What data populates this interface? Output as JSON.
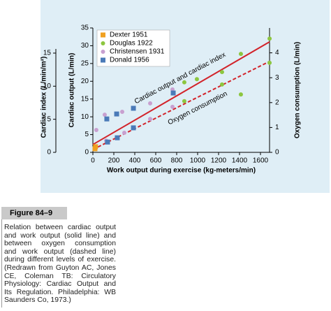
{
  "chart_data": {
    "type": "scatter",
    "x_label": "Work output during exercise (kg-meters/min)",
    "y_label": "Cardiac output (L/min)",
    "y2_label": "Oxygen consumption (L/min)",
    "xlim": [
      0,
      1700
    ],
    "xticks": [
      0,
      200,
      400,
      600,
      800,
      1000,
      1200,
      1400,
      1600
    ],
    "ylim": [
      0,
      35
    ],
    "yticks": [
      0,
      5,
      10,
      15,
      20,
      25,
      30,
      35
    ],
    "y2lim": [
      0,
      5
    ],
    "y2ticks": [
      0,
      1,
      2,
      3,
      4
    ],
    "index_axis": {
      "label": "Cardiac index (L/min/m²)",
      "lim": [
        0,
        18.8
      ],
      "ticks": [
        0,
        5,
        10,
        15
      ]
    },
    "series": [
      {
        "name": "Dexter 1951",
        "color": "#f0a020",
        "marker": "square",
        "x": [
          20,
          25
        ],
        "values": [
          1.0,
          1.6
        ]
      },
      {
        "name": "Douglas 1922",
        "color": "#8cc63f",
        "marker": "circle",
        "x": [
          1687,
          1413,
          1233,
          1233,
          1413,
          993,
          873,
          873,
          1687
        ],
        "values": [
          32,
          27.7,
          22.6,
          19.1,
          16.3,
          20.6,
          19.7,
          14.4,
          25.2
        ]
      },
      {
        "name": "Christensen 1931",
        "color": "#c8a0d0",
        "marker": "circle",
        "x": [
          33,
          113,
          280,
          300,
          547,
          547,
          760,
          760,
          127
        ],
        "values": [
          6.3,
          10.6,
          11.4,
          5.5,
          13.8,
          9.4,
          17.7,
          12.8,
          3.3
        ]
      },
      {
        "name": "Donald 1956",
        "color": "#4a7ab8",
        "marker": "square",
        "x": [
          133,
          227,
          387,
          767,
          140,
          233,
          387
        ],
        "values": [
          9.4,
          10.8,
          12.4,
          16.7,
          2.9,
          4.1,
          6.9
        ]
      }
    ],
    "fit_lines": [
      {
        "x": [
          0,
          1687
        ],
        "values": [
          2.2,
          31.1
        ],
        "color": "#d2232a",
        "dashed": false
      },
      {
        "x": [
          0,
          1687
        ],
        "values": [
          0.8,
          25.6
        ],
        "color": "#d2232a",
        "dashed": true
      }
    ],
    "annotations": [
      "Cardiac output and cardiac index",
      "Oxygen consumption"
    ]
  },
  "figure": {
    "label": "Figure 84–9",
    "caption_lines": [
      "Relation between cardiac output",
      "and work output (solid line) and",
      "between oxygen consumption",
      "and work output (dashed line)",
      "during different levels of exercise.",
      "(Redrawn from Guyton AC, Jones",
      "CE, Coleman TB: Circulatory",
      "Physiology: Cardiac Output and",
      "Its Regulation. Philadelphia: WB",
      "Saunders Co, 1973.)"
    ]
  }
}
